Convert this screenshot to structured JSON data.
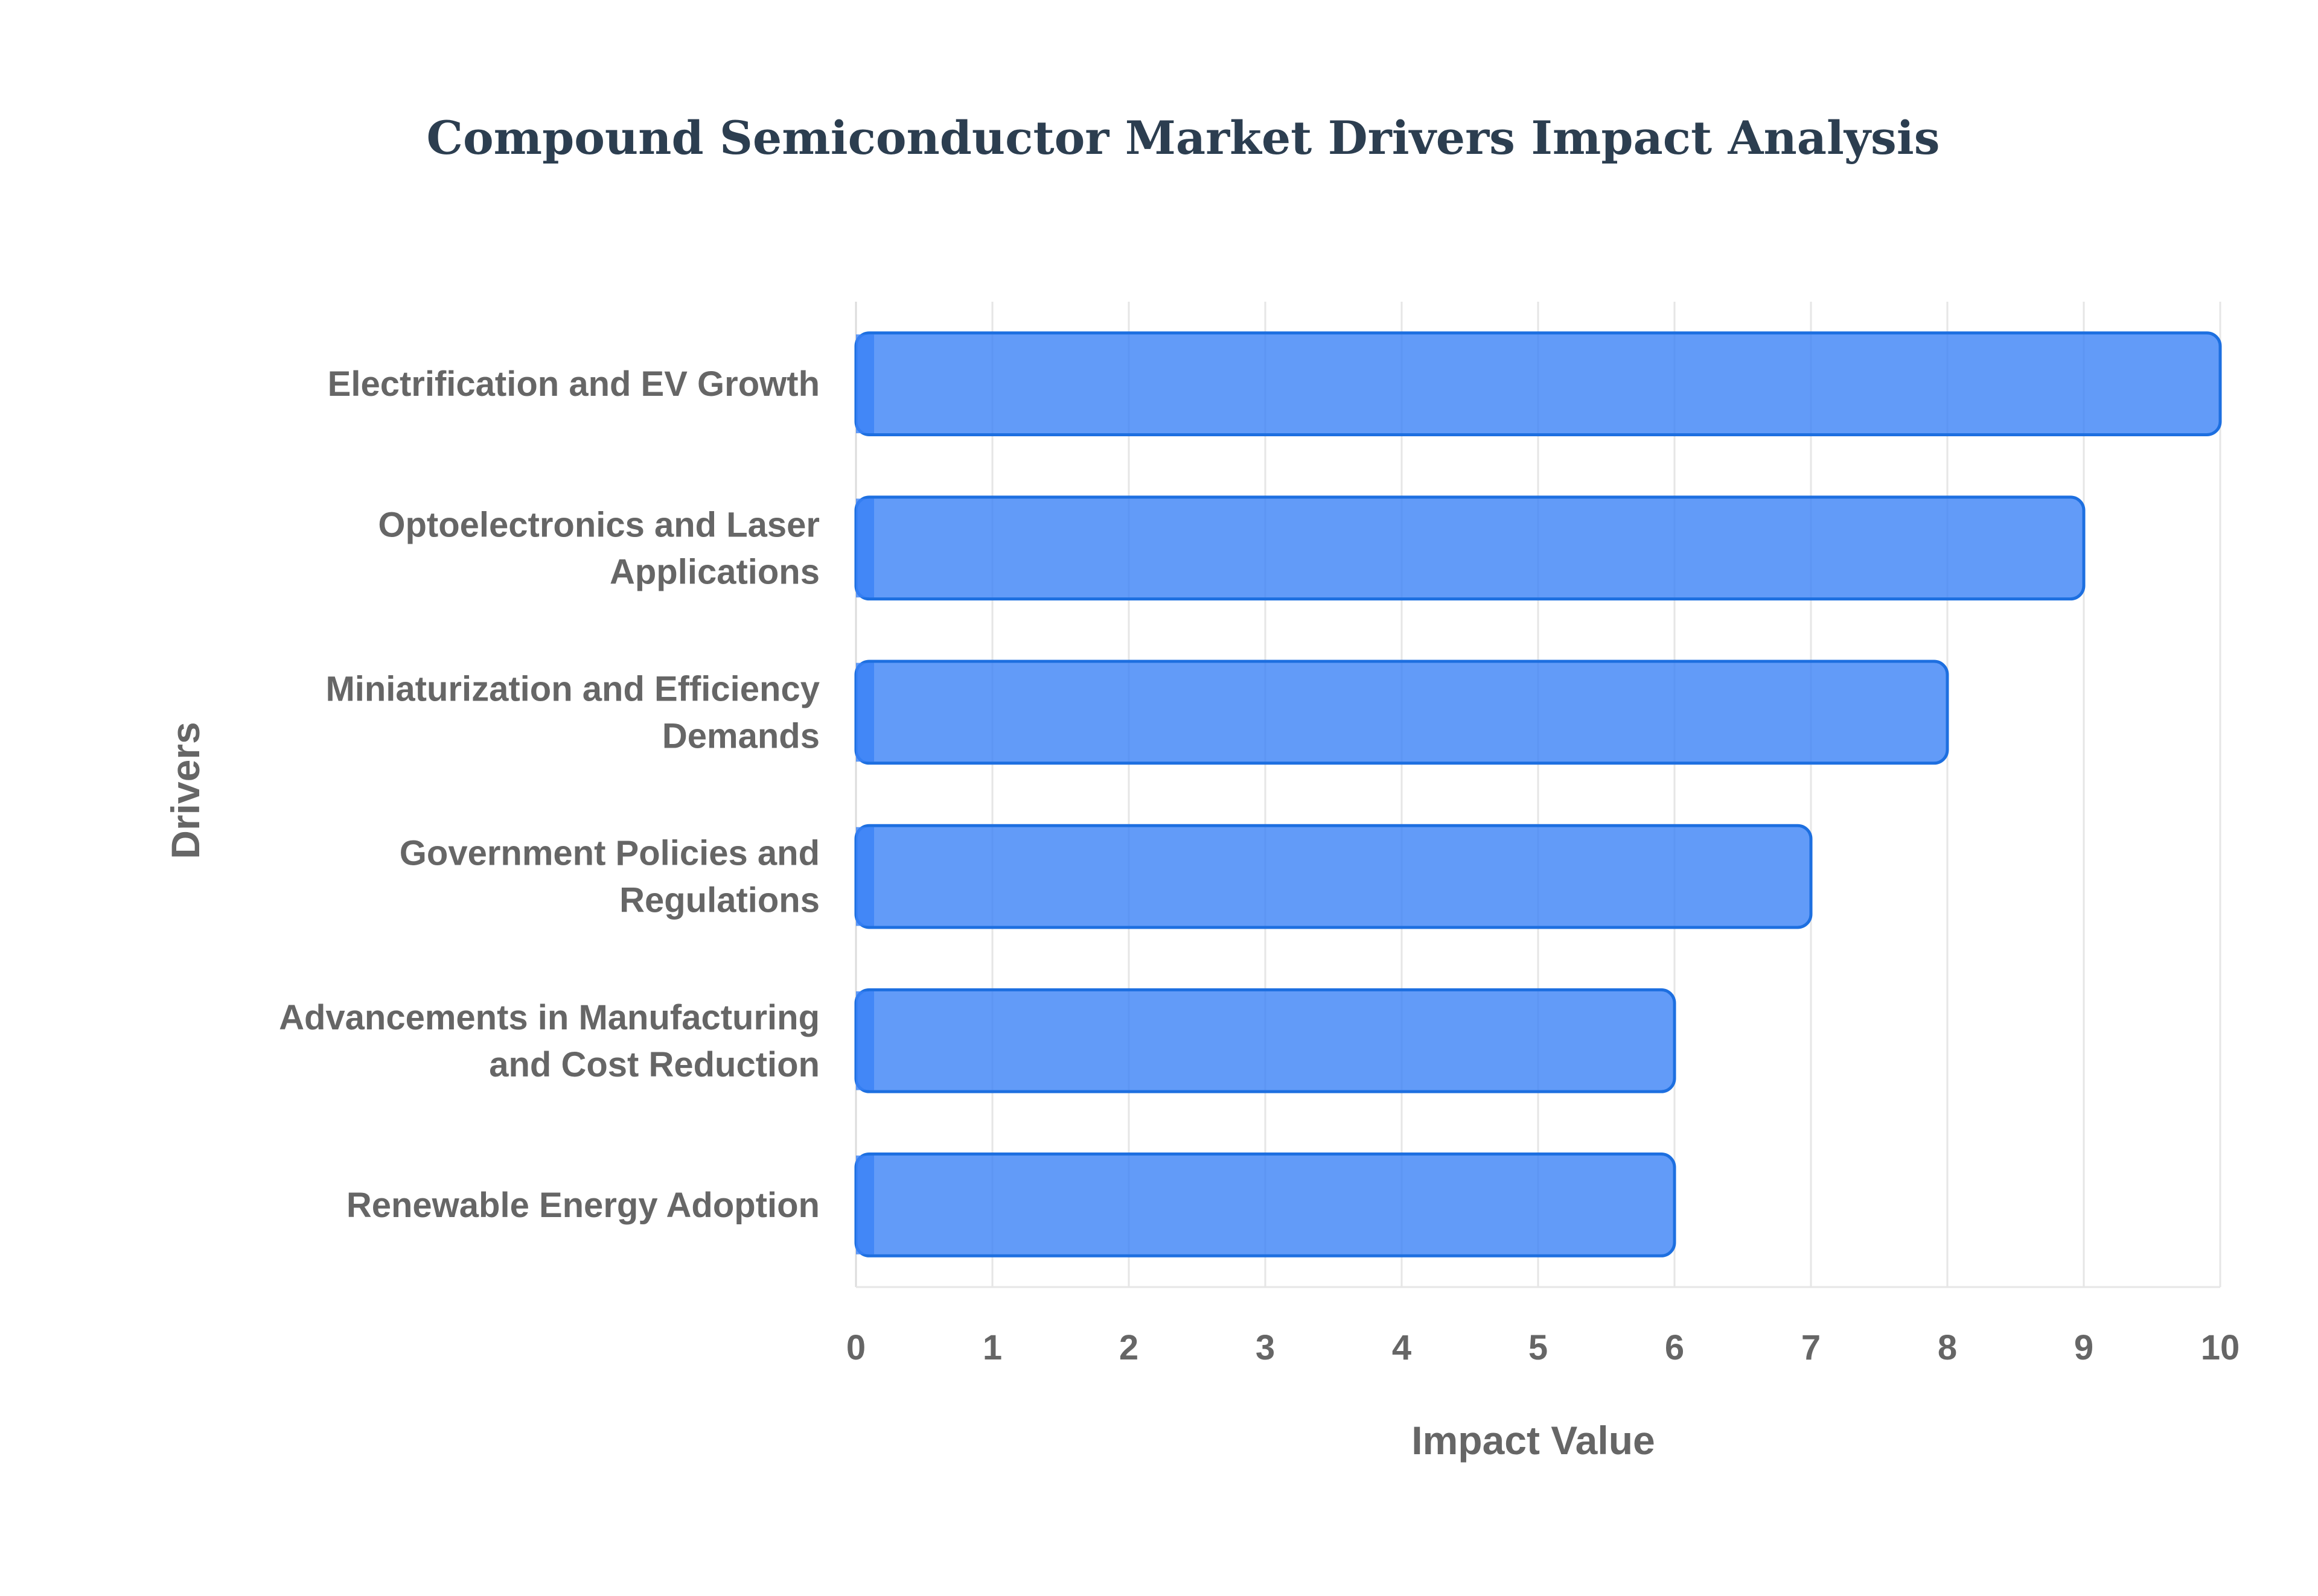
{
  "chart_data": {
    "type": "bar",
    "orientation": "horizontal",
    "title": "Compound Semiconductor Market Drivers Impact Analysis",
    "xlabel": "Impact Value",
    "ylabel": "Drivers",
    "categories": [
      "Electrification and EV Growth",
      "Optoelectronics and Laser Applications",
      "Miniaturization and Efficiency Demands",
      "Government Policies and Regulations",
      "Advancements in Manufacturing and Cost Reduction",
      "Renewable Energy Adoption"
    ],
    "category_lines": [
      [
        "Electrification and EV Growth"
      ],
      [
        "Optoelectronics and Laser",
        "Applications"
      ],
      [
        "Miniaturization and Efficiency",
        "Demands"
      ],
      [
        "Government Policies and",
        "Regulations"
      ],
      [
        "Advancements in Manufacturing",
        "and Cost Reduction"
      ],
      [
        "Renewable Energy Adoption"
      ]
    ],
    "values": [
      10,
      9,
      8,
      7,
      6,
      6
    ],
    "xlim": [
      0,
      10
    ],
    "xticks": [
      0,
      1,
      2,
      3,
      4,
      5,
      6,
      7,
      8,
      9,
      10
    ],
    "grid": true,
    "legend": "none",
    "colors": {
      "bar_fill": "#3b82f6",
      "bar_stroke": "#1d6fe0",
      "title": "#2c3e50",
      "text": "#666666"
    }
  }
}
